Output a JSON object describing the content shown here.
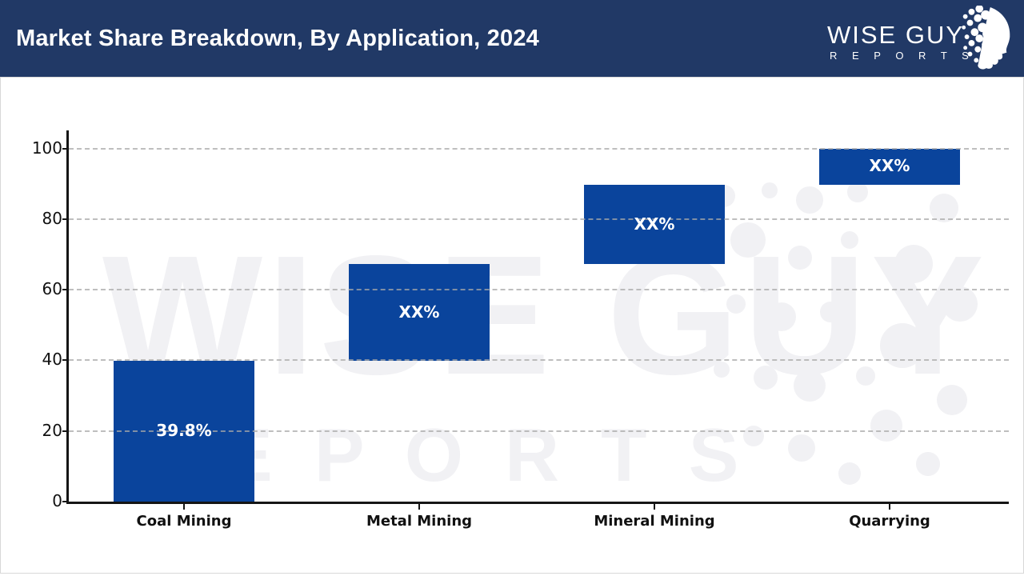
{
  "header": {
    "title": "Market Share Breakdown, By Application, 2024",
    "brand": {
      "line1": "WISE GUY",
      "line2": "R E P O R T S"
    }
  },
  "watermark": {
    "line1": "WISE GUY",
    "line2": "R E P O R T S"
  },
  "colors": {
    "header_bg": "#213966",
    "bar": "#0a449c",
    "axis": "#151515",
    "gridline": "#a8a8a8",
    "watermark": "#f1f1f4",
    "frame_border": "#d8d8d8",
    "title_text": "#ffffff",
    "bar_label_text": "#ffffff"
  },
  "chart_data": {
    "type": "bar",
    "subtype": "waterfall",
    "title": "Market Share Breakdown, By Application, 2024",
    "xlabel": "",
    "ylabel": "",
    "ylim": [
      0,
      105
    ],
    "grid": "dashed-horizontal",
    "legend": "none",
    "categories": [
      "Coal Mining",
      "Metal Mining",
      "Mineral Mining",
      "Quarrying"
    ],
    "yticks": [
      0,
      20,
      40,
      60,
      80,
      100
    ],
    "segments": [
      {
        "category": "Coal Mining",
        "start": 0,
        "end": 39.8,
        "value": 39.8,
        "label": "39.8%"
      },
      {
        "category": "Metal Mining",
        "start": 39.8,
        "end": 67.2,
        "value": 27.4,
        "label": "XX%"
      },
      {
        "category": "Mineral Mining",
        "start": 67.2,
        "end": 89.7,
        "value": 22.5,
        "label": "XX%"
      },
      {
        "category": "Quarrying",
        "start": 89.7,
        "end": 100,
        "value": 10.3,
        "label": "XX%"
      }
    ]
  }
}
